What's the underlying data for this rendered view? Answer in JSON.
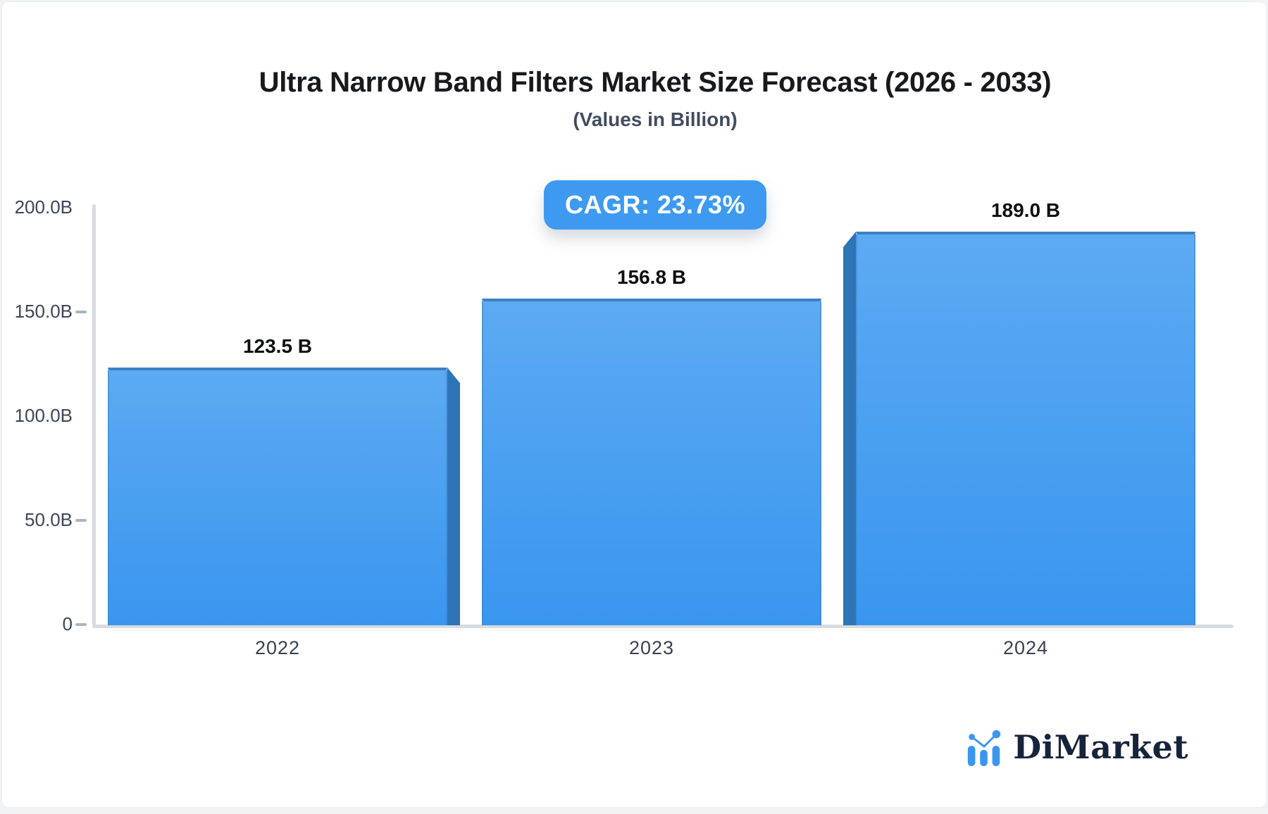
{
  "header": {
    "title": "Ultra Narrow Band Filters Market Size Forecast (2026 - 2033)",
    "subtitle": "(Values in Billion)",
    "cagr_badge": "CAGR: 23.73%"
  },
  "brand": {
    "name": "DiMarket"
  },
  "colors": {
    "badge_bg": "#3e9af0",
    "bar_top": "#5caaf2",
    "bar_bottom": "#3996ef",
    "bar_stroke": "#3d80c2",
    "bar_side": "#2d75b6",
    "axis": "#d9dbe0",
    "brand_blue": "#3b96f2",
    "logo_navy": "#16233c"
  },
  "chart_data": {
    "type": "bar",
    "title": "Ultra Narrow Band Filters Market Size Forecast (2026 - 2033)",
    "subtitle": "(Values in Billion)",
    "cagr_annotation": "CAGR: 23.73%",
    "unit": "Billion",
    "categories": [
      "2022",
      "2023",
      "2024"
    ],
    "values": [
      123.5,
      156.8,
      189.0
    ],
    "value_labels": [
      "123.5 B",
      "156.8 B",
      "189.0 B"
    ],
    "xlabel": "",
    "ylabel": "",
    "ylim": [
      0,
      200
    ],
    "yticks": [
      {
        "label": "200.0B",
        "value": 200,
        "dash": false
      },
      {
        "label": "150.0B",
        "value": 150,
        "dash": true
      },
      {
        "label": "100.0B",
        "value": 100,
        "dash": false
      },
      {
        "label": "50.0B",
        "value": 50,
        "dash": true
      },
      {
        "label": "0",
        "value": 0,
        "dash": true
      }
    ],
    "grid": false,
    "legend": false,
    "bar_3d_effect": "side faces angled toward center bar"
  }
}
